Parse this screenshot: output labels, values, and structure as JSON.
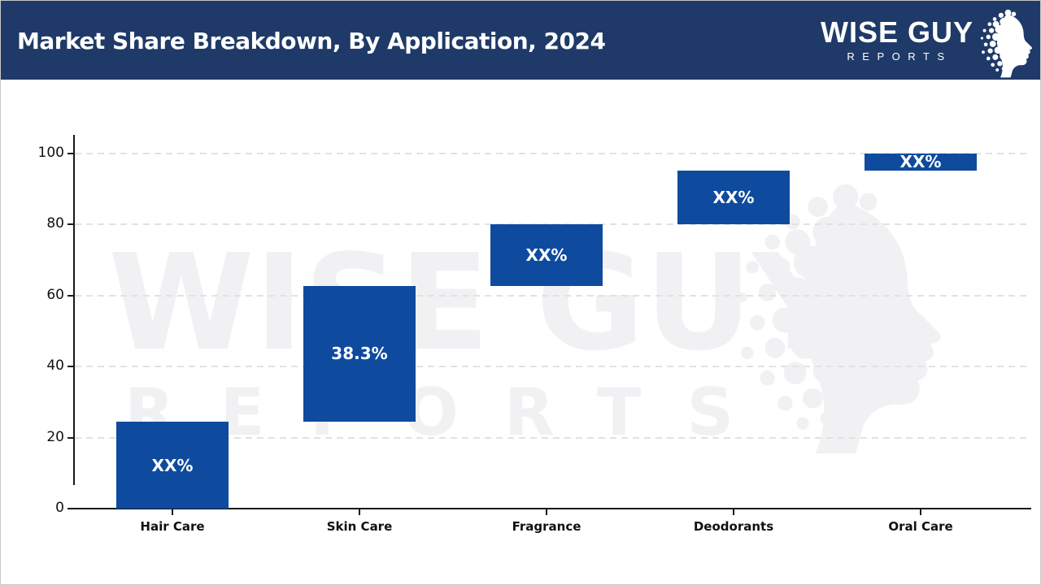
{
  "header": {
    "title": "Market Share Breakdown, By Application, 2024",
    "logo": {
      "line1": "WISE GUY",
      "line2": "REPORTS"
    }
  },
  "watermark": {
    "line1": "WISE GUY",
    "line2": "REPORTS"
  },
  "colors": {
    "header_bg": "#1f3a68",
    "bar": "#0e4b9e",
    "bar_label": "#ffffff",
    "gridline": "#e2e2e2",
    "axis": "#1a1a1a",
    "watermark": "#f1f1f4"
  },
  "chart_data": {
    "type": "bar",
    "subtype": "waterfall",
    "title": "Market Share Breakdown, By Application, 2024",
    "xlabel": "",
    "ylabel": "",
    "categories": [
      "Hair Care",
      "Skin Care",
      "Fragrance",
      "Deodorants",
      "Oral Care"
    ],
    "bars": [
      {
        "category": "Hair Care",
        "start": 0,
        "end": 24.4,
        "label": "XX%"
      },
      {
        "category": "Skin Care",
        "start": 24.4,
        "end": 62.7,
        "label": "38.3%"
      },
      {
        "category": "Fragrance",
        "start": 62.7,
        "end": 80.0,
        "label": "XX%"
      },
      {
        "category": "Deodorants",
        "start": 80.0,
        "end": 95.0,
        "label": "XX%"
      },
      {
        "category": "Oral Care",
        "start": 95.0,
        "end": 100.0,
        "label": "XX%"
      }
    ],
    "yticks": [
      0,
      20,
      40,
      60,
      80,
      100
    ],
    "ylim": [
      0,
      105
    ],
    "grid": "dashed-horizontal",
    "legend": null
  }
}
